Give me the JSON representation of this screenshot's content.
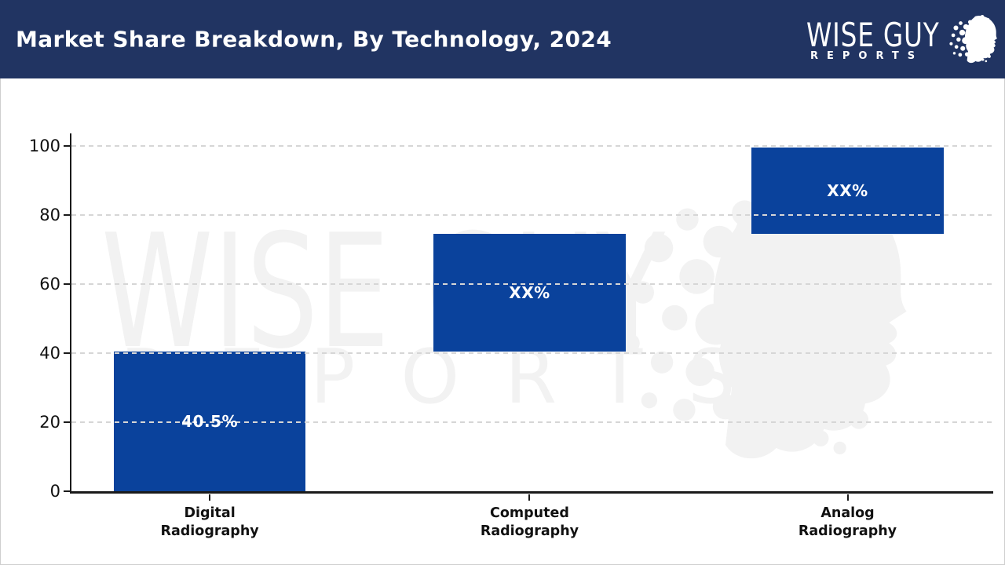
{
  "header": {
    "title": "Market Share Breakdown, By Technology, 2024",
    "logo": {
      "line1": "WISE GUY",
      "line2": "REPORTS"
    }
  },
  "watermark": {
    "line1": "WISE GUY",
    "line2": "REPORTS"
  },
  "chart_data": {
    "type": "bar",
    "subtype": "floating-segment-market-share",
    "title": "Market Share Breakdown, By Technology, 2024",
    "categories": [
      "Digital\nRadiography",
      "Computed\nRadiography",
      "Analog Radiography"
    ],
    "segments": [
      {
        "category": "Digital Radiography",
        "start": 0,
        "end": 40.5,
        "label": "40.5%"
      },
      {
        "category": "Computed Radiography",
        "start": 40.5,
        "end": 74.5,
        "label": "XX%"
      },
      {
        "category": "Analog Radiography",
        "start": 74.5,
        "end": 99.5,
        "label": "XX%"
      }
    ],
    "yticks": [
      0,
      20,
      40,
      60,
      80,
      100
    ],
    "ylim": [
      0,
      103.6
    ],
    "xlabel": "",
    "ylabel": "",
    "legend": "none",
    "grid": {
      "axis": "y",
      "style": "dashed",
      "color": "#d6d6d6"
    },
    "bar_color": "#0a429c",
    "axis_color": "#1a1a1a",
    "bar_width_frac": 0.208,
    "bar_centers_frac": [
      0.15,
      0.497,
      0.842
    ]
  }
}
